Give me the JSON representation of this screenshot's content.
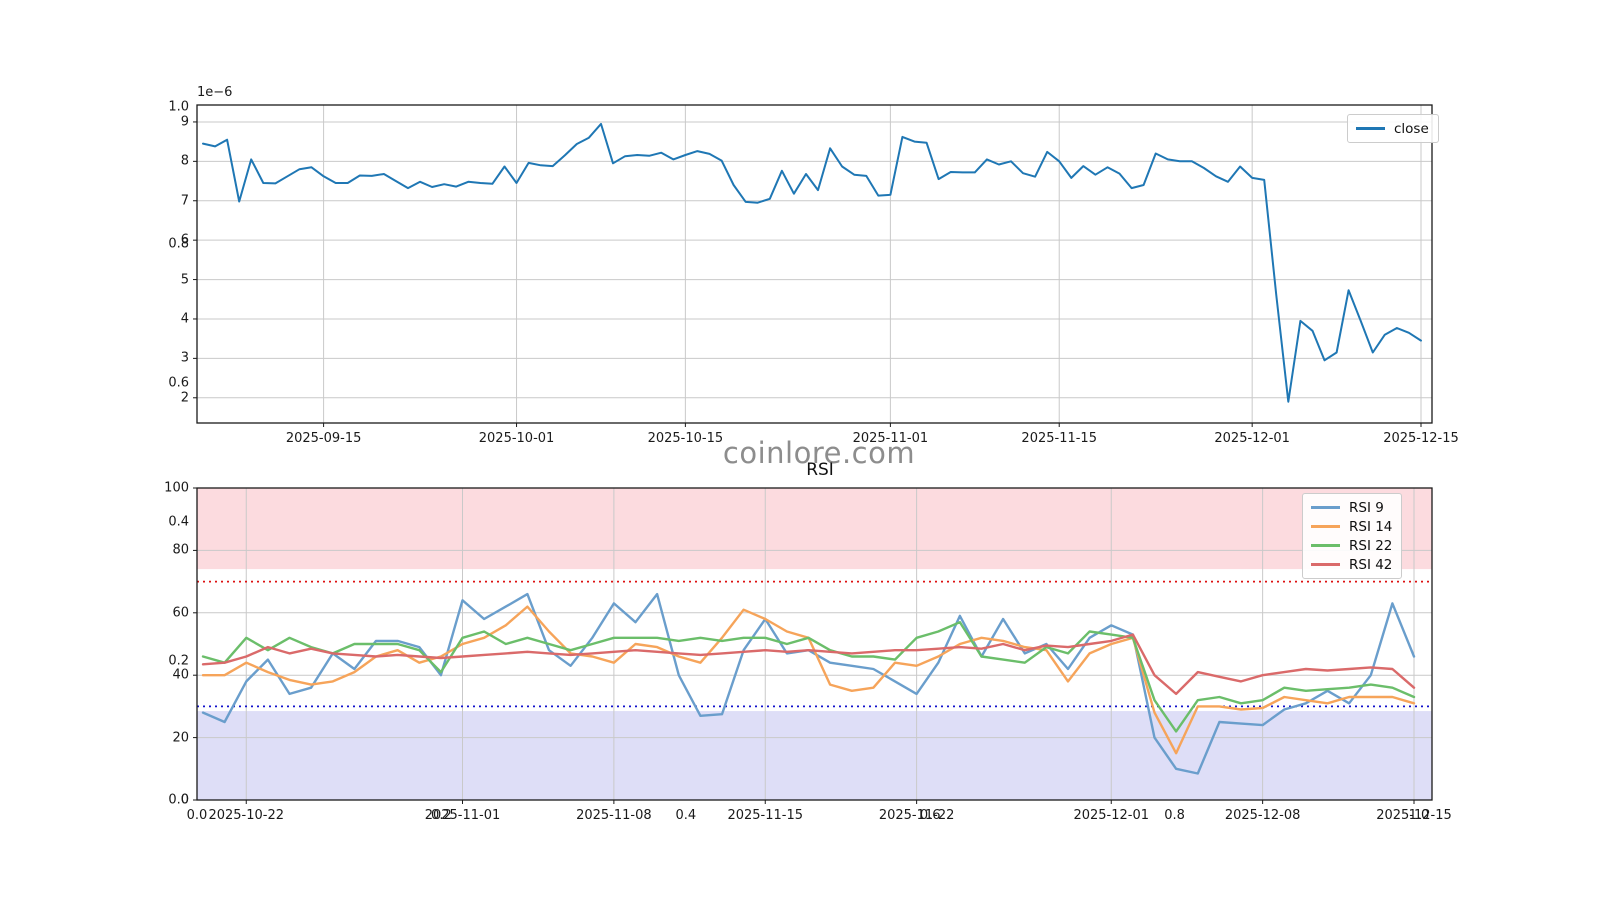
{
  "watermark": {
    "text": "coinlore.com",
    "color": "#8d8d8d"
  },
  "price_chart": {
    "offset_label": "1e−6",
    "legend": [
      {
        "label": "close",
        "color": "#1f77b4"
      }
    ]
  },
  "rsi_chart": {
    "title": "RSI",
    "legend": [
      {
        "label": "RSI 9",
        "color": "#6a9ecc"
      },
      {
        "label": "RSI 14",
        "color": "#f6a45a"
      },
      {
        "label": "RSI 22",
        "color": "#6bbe6a"
      },
      {
        "label": "RSI 42",
        "color": "#da6a6a"
      }
    ]
  },
  "overlay_axis": {
    "x_ticks": [
      "0.0",
      "0.2",
      "0.4",
      "0.6",
      "0.8",
      "1.0"
    ],
    "y_ticks": [
      "1.0",
      "0.8",
      "0.6",
      "0.4",
      "0.2",
      "0.0"
    ]
  },
  "colors": {
    "grid": "#c9c9c9",
    "spine": "#1a1a1a",
    "overbought_band": "#fcdbdf",
    "oversold_band": "#dedef7",
    "overbought_line": "#dd1111",
    "oversold_line": "#1111cc"
  },
  "chart_data": [
    {
      "type": "line",
      "title": "",
      "ylabel": "",
      "xlabel": "",
      "y_scale": "1e-6",
      "ylim": [
        1.36,
        9.43
      ],
      "grid": true,
      "legend_position": "upper right",
      "y_ticks": [
        2,
        3,
        4,
        5,
        6,
        7,
        8,
        9
      ],
      "x_ticks": [
        "2025-09-15",
        "2025-10-01",
        "2025-10-15",
        "2025-11-01",
        "2025-11-15",
        "2025-12-01",
        "2025-12-15"
      ],
      "x": [
        "2025-09-05",
        "2025-09-06",
        "2025-09-07",
        "2025-09-08",
        "2025-09-09",
        "2025-09-10",
        "2025-09-11",
        "2025-09-12",
        "2025-09-13",
        "2025-09-14",
        "2025-09-15",
        "2025-09-16",
        "2025-09-17",
        "2025-09-18",
        "2025-09-19",
        "2025-09-20",
        "2025-09-21",
        "2025-09-22",
        "2025-09-23",
        "2025-09-24",
        "2025-09-25",
        "2025-09-26",
        "2025-09-27",
        "2025-09-28",
        "2025-09-29",
        "2025-09-30",
        "2025-10-01",
        "2025-10-02",
        "2025-10-03",
        "2025-10-04",
        "2025-10-05",
        "2025-10-06",
        "2025-10-07",
        "2025-10-08",
        "2025-10-09",
        "2025-10-10",
        "2025-10-11",
        "2025-10-12",
        "2025-10-13",
        "2025-10-14",
        "2025-10-15",
        "2025-10-16",
        "2025-10-17",
        "2025-10-18",
        "2025-10-19",
        "2025-10-20",
        "2025-10-21",
        "2025-10-22",
        "2025-10-23",
        "2025-10-24",
        "2025-10-25",
        "2025-10-26",
        "2025-10-27",
        "2025-10-28",
        "2025-10-29",
        "2025-10-30",
        "2025-10-31",
        "2025-11-01",
        "2025-11-02",
        "2025-11-03",
        "2025-11-04",
        "2025-11-05",
        "2025-11-06",
        "2025-11-07",
        "2025-11-08",
        "2025-11-09",
        "2025-11-10",
        "2025-11-11",
        "2025-11-12",
        "2025-11-13",
        "2025-11-14",
        "2025-11-15",
        "2025-11-16",
        "2025-11-17",
        "2025-11-18",
        "2025-11-19",
        "2025-11-20",
        "2025-11-21",
        "2025-11-22",
        "2025-11-23",
        "2025-11-24",
        "2025-11-25",
        "2025-11-26",
        "2025-11-27",
        "2025-11-28",
        "2025-11-29",
        "2025-11-30",
        "2025-12-01",
        "2025-12-02",
        "2025-12-03",
        "2025-12-04",
        "2025-12-05",
        "2025-12-06",
        "2025-12-07",
        "2025-12-08",
        "2025-12-09",
        "2025-12-10",
        "2025-12-11",
        "2025-12-12",
        "2025-12-13",
        "2025-12-14",
        "2025-12-15"
      ],
      "series": [
        {
          "name": "close",
          "color": "#1f77b4",
          "unit": "1e-6",
          "values": [
            8.45,
            8.38,
            8.55,
            6.98,
            8.05,
            7.45,
            7.44,
            7.62,
            7.8,
            7.85,
            7.62,
            7.45,
            7.45,
            7.64,
            7.63,
            7.68,
            7.5,
            7.32,
            7.48,
            7.35,
            7.42,
            7.36,
            7.48,
            7.45,
            7.43,
            7.87,
            7.45,
            7.96,
            7.9,
            7.88,
            8.15,
            8.44,
            8.6,
            8.95,
            7.95,
            8.13,
            8.16,
            8.14,
            8.22,
            8.05,
            8.16,
            8.26,
            8.19,
            8.02,
            7.4,
            6.97,
            6.95,
            7.05,
            7.76,
            7.18,
            7.68,
            7.27,
            8.33,
            7.87,
            7.66,
            7.63,
            7.13,
            7.15,
            8.62,
            8.5,
            8.47,
            7.55,
            7.73,
            7.72,
            7.72,
            8.05,
            7.92,
            8.0,
            7.7,
            7.61,
            8.24,
            8.0,
            7.58,
            7.88,
            7.66,
            7.85,
            7.69,
            7.32,
            7.4,
            8.2,
            8.05,
            8.0,
            8.0,
            7.83,
            7.62,
            7.48,
            7.87,
            7.58,
            7.53,
            4.6,
            1.9,
            3.95,
            3.7,
            2.95,
            3.15,
            4.73,
            3.95,
            3.15,
            3.6,
            3.77,
            3.65,
            3.45
          ]
        }
      ]
    },
    {
      "type": "line",
      "title": "RSI",
      "ylabel": "",
      "xlabel": "",
      "ylim": [
        0,
        100
      ],
      "grid": true,
      "legend_position": "upper right",
      "y_ticks": [
        0,
        20,
        40,
        60,
        80,
        100
      ],
      "x_ticks": [
        "2025-10-22",
        "2025-11-01",
        "2025-11-08",
        "2025-11-15",
        "2025-11-22",
        "2025-12-01",
        "2025-12-08",
        "2025-12-15"
      ],
      "hlines": [
        {
          "y": 70,
          "color": "#dd1111",
          "style": "dotted",
          "name": "overbought-threshold"
        },
        {
          "y": 30,
          "color": "#1111cc",
          "style": "dotted",
          "name": "oversold-threshold"
        }
      ],
      "bands": [
        {
          "from": 74,
          "to": 100,
          "color": "#fcdbdf",
          "name": "overbought-zone"
        },
        {
          "from": 0,
          "to": 28.5,
          "color": "#dedef7",
          "name": "oversold-zone"
        }
      ],
      "x": [
        "2025-10-20",
        "2025-10-21",
        "2025-10-22",
        "2025-10-23",
        "2025-10-24",
        "2025-10-25",
        "2025-10-26",
        "2025-10-27",
        "2025-10-28",
        "2025-10-29",
        "2025-10-30",
        "2025-10-31",
        "2025-11-01",
        "2025-11-02",
        "2025-11-03",
        "2025-11-04",
        "2025-11-05",
        "2025-11-06",
        "2025-11-07",
        "2025-11-08",
        "2025-11-09",
        "2025-11-10",
        "2025-11-11",
        "2025-11-12",
        "2025-11-13",
        "2025-11-14",
        "2025-11-15",
        "2025-11-16",
        "2025-11-17",
        "2025-11-18",
        "2025-11-19",
        "2025-11-20",
        "2025-11-21",
        "2025-11-22",
        "2025-11-23",
        "2025-11-24",
        "2025-11-25",
        "2025-11-26",
        "2025-11-27",
        "2025-11-28",
        "2025-11-29",
        "2025-11-30",
        "2025-12-01",
        "2025-12-02",
        "2025-12-03",
        "2025-12-04",
        "2025-12-05",
        "2025-12-06",
        "2025-12-07",
        "2025-12-08",
        "2025-12-09",
        "2025-12-10",
        "2025-12-11",
        "2025-12-12",
        "2025-12-13",
        "2025-12-14",
        "2025-12-15"
      ],
      "series": [
        {
          "name": "RSI 9",
          "color": "#6a9ecc",
          "values": [
            28,
            25,
            38,
            45,
            34,
            36,
            47,
            42,
            51,
            51,
            49,
            40,
            64,
            58,
            62,
            66,
            48,
            43,
            52,
            63,
            57,
            66,
            40,
            27,
            27.5,
            48,
            58,
            47,
            48,
            44,
            43,
            42,
            38,
            34,
            44,
            59,
            46,
            58,
            47,
            50,
            42,
            52,
            56,
            53,
            20,
            10,
            8.5,
            25,
            24.5,
            24,
            29,
            31,
            35,
            31,
            40,
            63,
            46
          ]
        },
        {
          "name": "RSI 14",
          "color": "#f6a45a",
          "values": [
            40,
            40,
            44,
            41,
            38.5,
            37,
            38,
            41,
            46,
            48,
            44,
            46,
            50,
            52,
            56,
            62,
            54,
            47,
            46,
            44,
            50,
            49,
            46,
            44,
            52,
            61,
            58,
            54,
            52,
            37,
            35,
            36,
            44,
            43,
            46,
            50,
            52,
            51,
            49,
            48,
            38,
            47,
            50,
            52,
            28,
            15,
            30,
            30,
            29,
            29.5,
            33,
            32,
            31,
            33,
            33,
            33,
            31
          ]
        },
        {
          "name": "RSI 22",
          "color": "#6bbe6a",
          "values": [
            46,
            44,
            52,
            48,
            52,
            49,
            47,
            50,
            50,
            50,
            48,
            41,
            52,
            54,
            50,
            52,
            50,
            48,
            50,
            52,
            52,
            52,
            51,
            52,
            51,
            52,
            52,
            50,
            52,
            48,
            46,
            46,
            45,
            52,
            54,
            57,
            46,
            45,
            44,
            49,
            47,
            54,
            53,
            52,
            32,
            22,
            32,
            33,
            31,
            32,
            36,
            35,
            35.5,
            36,
            37,
            36,
            33
          ]
        },
        {
          "name": "RSI 42",
          "color": "#da6a6a",
          "values": [
            43.5,
            44,
            46,
            49,
            47,
            48.5,
            47,
            46.5,
            46,
            46.5,
            46,
            45.5,
            46,
            46.5,
            47,
            47.5,
            47,
            46.5,
            47,
            47.5,
            48,
            47.5,
            47,
            46.5,
            47,
            47.5,
            48,
            47.5,
            48,
            47.5,
            47,
            47.5,
            48,
            48,
            48.5,
            49,
            48.5,
            50,
            48,
            49.5,
            49,
            50,
            51,
            53,
            40,
            34,
            41,
            39.5,
            38,
            40,
            41,
            42,
            41.5,
            42,
            42.5,
            42,
            36
          ]
        }
      ]
    }
  ]
}
